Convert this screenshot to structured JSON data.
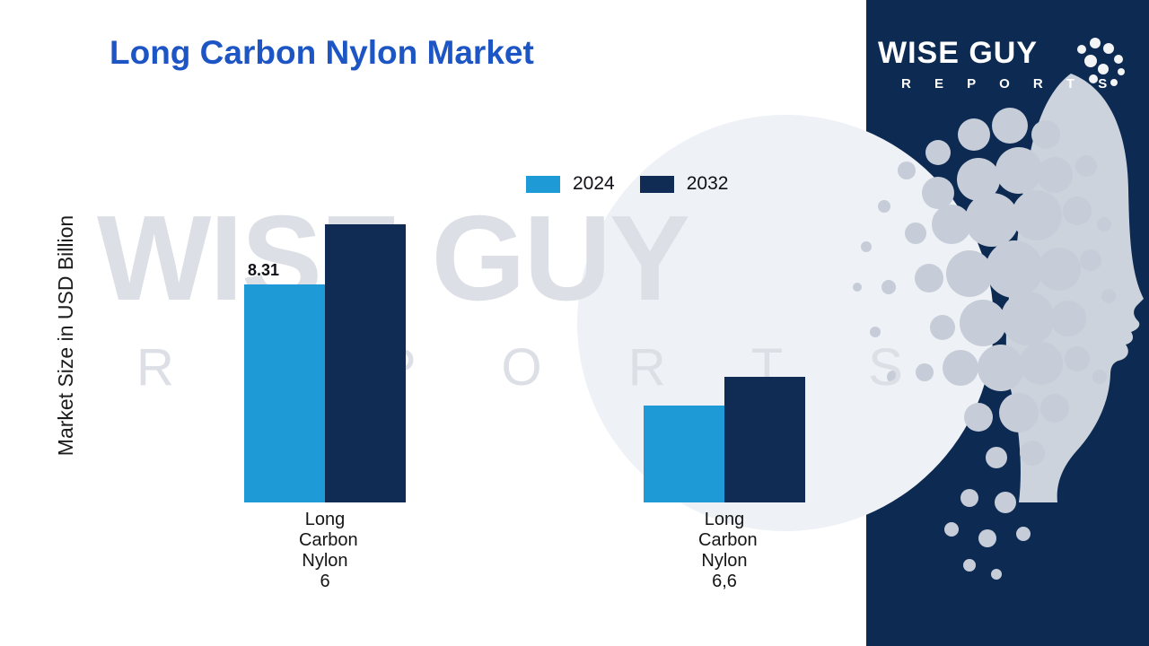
{
  "colors": {
    "title": "#1d56c4",
    "bar_2024": "#1e9ad7",
    "bar_2032": "#102c55",
    "panel_navy": "#0d2a52",
    "watermark_gray": "#dcdfe5",
    "circle_gray": "#eef1f5"
  },
  "watermark": {
    "line1": "WISE GUY",
    "line2": "R E P O R T S"
  },
  "brand": {
    "line1": "WISE GUY",
    "line2": "R E P O R T S"
  },
  "chart_data": {
    "type": "bar",
    "title": "Long Carbon Nylon Market",
    "ylabel": "Market Size in USD Billion",
    "xlabel": "",
    "categories": [
      "Long Carbon Nylon 6",
      "Long Carbon Nylon 6,6"
    ],
    "series": [
      {
        "name": "2024",
        "color": "#1e9ad7",
        "values": [
          8.31,
          3.7
        ]
      },
      {
        "name": "2032",
        "color": "#102c55",
        "values": [
          10.6,
          4.8
        ]
      }
    ],
    "annotations": [
      {
        "series": 0,
        "category": 0,
        "text": "8.31"
      }
    ],
    "ylim": [
      0,
      11
    ],
    "grid": false,
    "legend_position": "top-center",
    "value_axis_visible": false
  }
}
